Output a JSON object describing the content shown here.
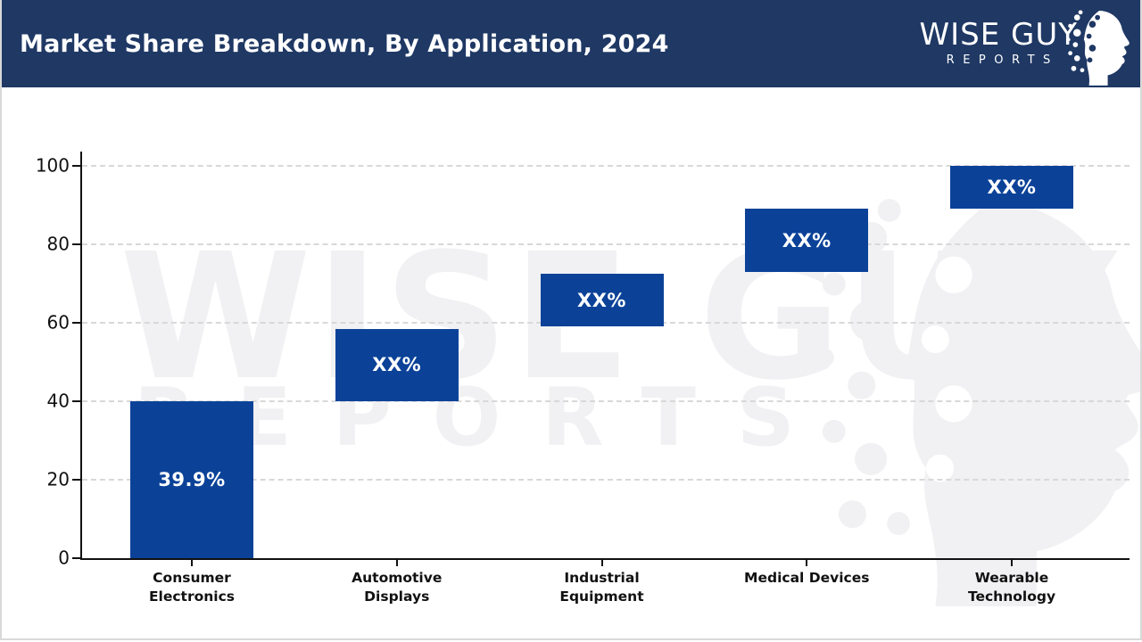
{
  "header": {
    "title": "Market Share Breakdown, By Application, 2024",
    "logo": {
      "brand_top": "WISE GUY",
      "brand_bottom": "REPORTS"
    }
  },
  "watermark": {
    "line1": "WISE GUY",
    "line2": "REPORTS"
  },
  "colors": {
    "header_bg": "#1f3864",
    "bar_fill": "#0b4298",
    "bar_label_text": "#ffffff",
    "title_text": "#ffffff",
    "axis": "#111111",
    "tick_label_text": "#111111",
    "gridline": "#d8d8d8",
    "watermark_gray": "#f1f1f3",
    "page_border": "#d9d9d9"
  },
  "chart_data": {
    "type": "bar",
    "subtype": "waterfall",
    "title": "Market Share Breakdown, By Application, 2024",
    "unit": "%",
    "categories": [
      "Consumer\nElectronics",
      "Automotive\nDisplays",
      "Industrial\nEquipment",
      "Medical Devices",
      "Wearable\nTechnology"
    ],
    "segments": [
      {
        "category": "Consumer Electronics",
        "start": 0,
        "end": 39.9,
        "label": "39.9%"
      },
      {
        "category": "Automotive Displays",
        "start": 40,
        "end": 58.5,
        "label": "XX%"
      },
      {
        "category": "Industrial Equipment",
        "start": 59,
        "end": 72.5,
        "label": "XX%"
      },
      {
        "category": "Medical Devices",
        "start": 73,
        "end": 89,
        "label": "XX%"
      },
      {
        "category": "Wearable Technology",
        "start": 89,
        "end": 100,
        "label": "XX%"
      }
    ],
    "yticks": [
      0,
      20,
      40,
      60,
      80,
      100
    ],
    "ylim": [
      0,
      103.5
    ],
    "grid": "horizontal-dashed",
    "legend": "none"
  }
}
